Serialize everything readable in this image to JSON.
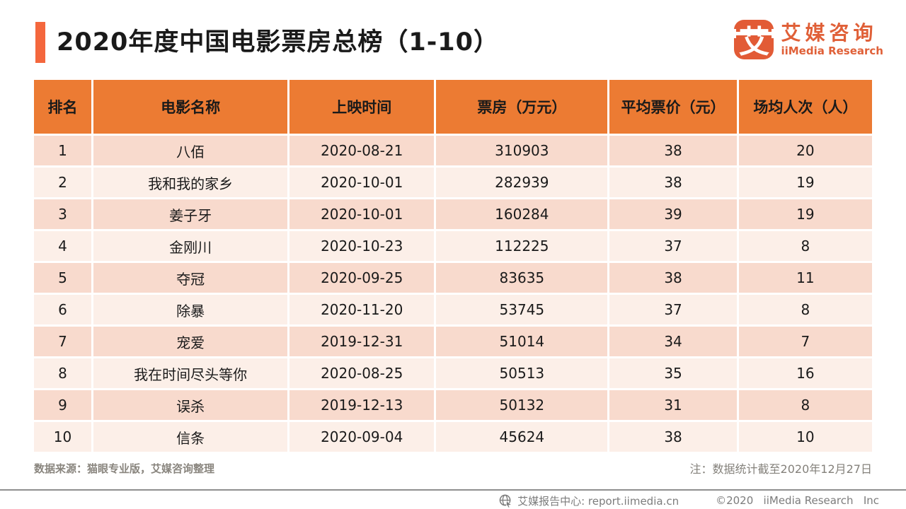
{
  "title": "2020年度中国电影票房总榜（1-10）",
  "logo": {
    "glyph": "艾",
    "name_cn": "艾媒咨询",
    "name_en": "iiMedia Research"
  },
  "chart_data": {
    "type": "table",
    "title": "2020年度中国电影票房总榜（1-10）",
    "columns": [
      "排名",
      "电影名称",
      "上映时间",
      "票房（万元）",
      "平均票价（元）",
      "场均人次（人）"
    ],
    "rows": [
      [
        "1",
        "八佰",
        "2020-08-21",
        "310903",
        "38",
        "20"
      ],
      [
        "2",
        "我和我的家乡",
        "2020-10-01",
        "282939",
        "38",
        "19"
      ],
      [
        "3",
        "姜子牙",
        "2020-10-01",
        "160284",
        "39",
        "19"
      ],
      [
        "4",
        "金刚川",
        "2020-10-23",
        "112225",
        "37",
        "8"
      ],
      [
        "5",
        "夺冠",
        "2020-09-25",
        "83635",
        "38",
        "11"
      ],
      [
        "6",
        "除暴",
        "2020-11-20",
        "53745",
        "37",
        "8"
      ],
      [
        "7",
        "宠爱",
        "2019-12-31",
        "51014",
        "34",
        "7"
      ],
      [
        "8",
        "我在时间尽头等你",
        "2020-08-25",
        "50513",
        "35",
        "16"
      ],
      [
        "9",
        "误杀",
        "2019-12-13",
        "50132",
        "31",
        "8"
      ],
      [
        "10",
        "信条",
        "2020-09-04",
        "45624",
        "38",
        "10"
      ]
    ]
  },
  "footnotes": {
    "source": "数据来源：猫眼专业版，艾媒咨询整理",
    "note": "注：数据统计截至2020年12月27日"
  },
  "bottom_bar": {
    "site": "艾媒报告中心: report.iimedia.cn",
    "copyright": "©2020   iiMedia Research   Inc"
  },
  "colors": {
    "accent_bar": "#F4673D",
    "table_header_bg": "#EC7B33",
    "row_odd_bg": "#F8DACD",
    "row_even_bg": "#FCEFE8",
    "logo_orange": "#E06038",
    "footnote_gray": "#89857E",
    "bottom_gray": "#7C7C7C"
  }
}
